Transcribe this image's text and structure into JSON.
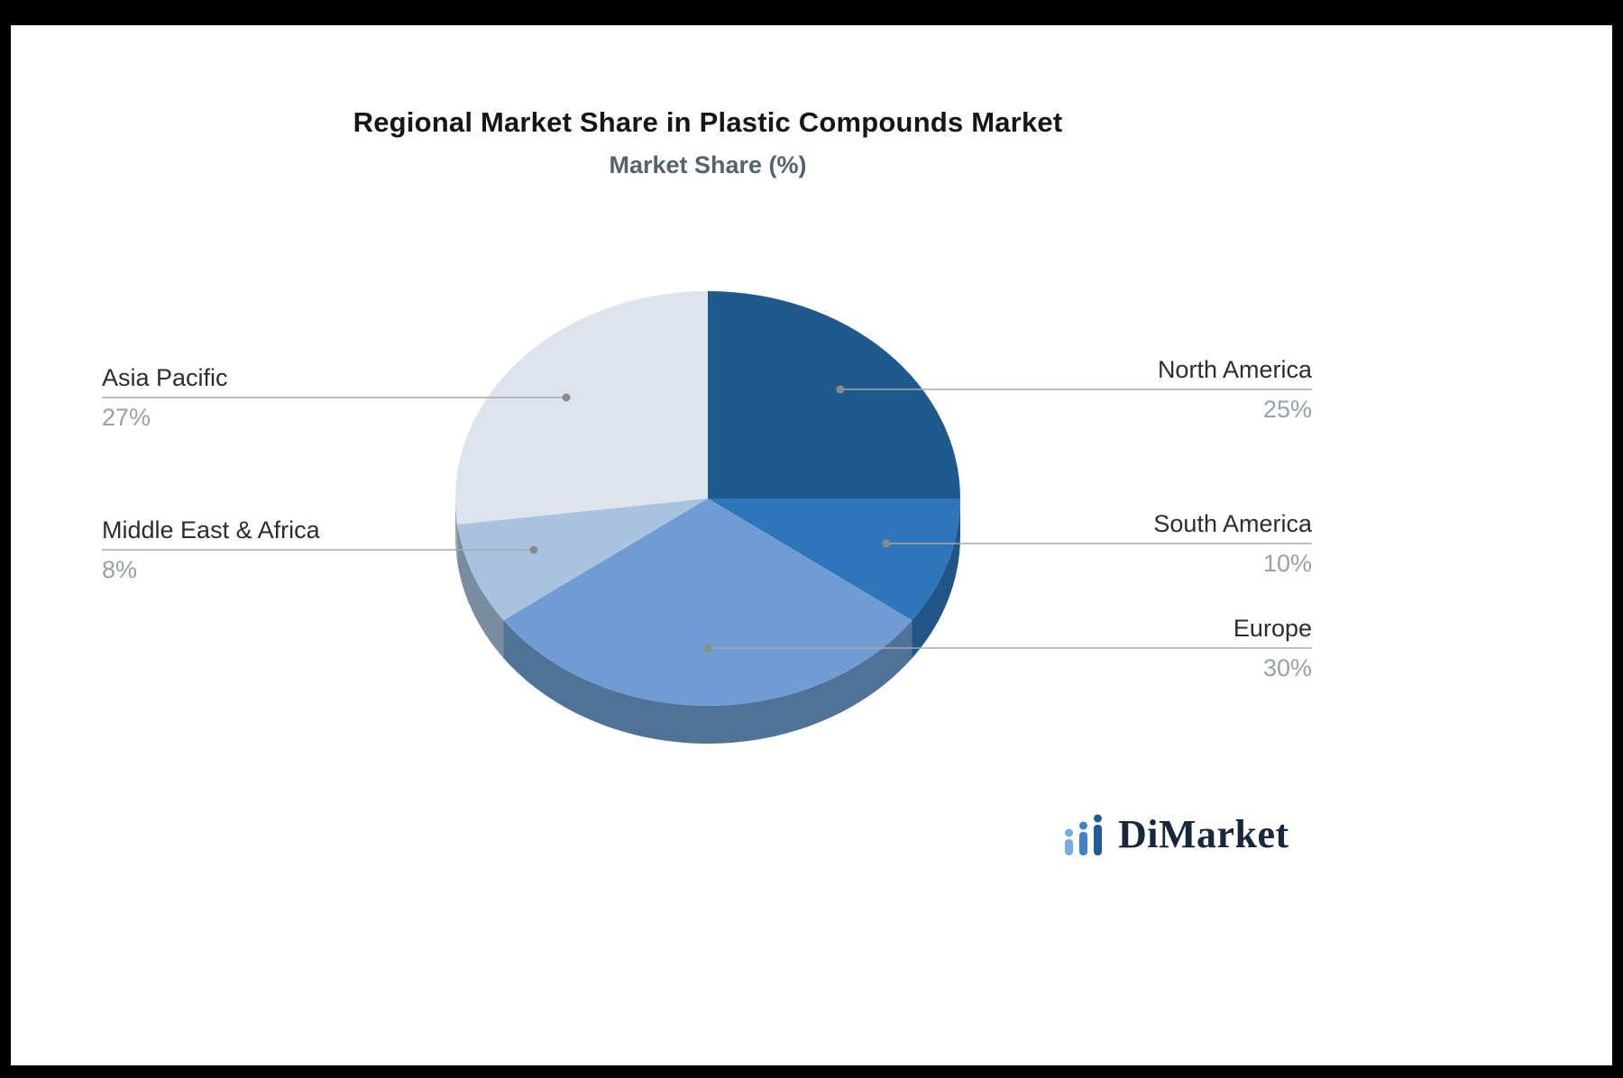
{
  "frame": {
    "background": "#ffffff",
    "border_color": "#000000"
  },
  "header": {
    "title": "Regional Market Share in Plastic Compounds Market",
    "subtitle": "Market Share (%)"
  },
  "branding": {
    "name": "DiMarket",
    "icon": "bar-chart-dots-icon",
    "icon_colors": [
      "#79ACE4",
      "#3E82CC",
      "#1F5C9E"
    ],
    "text_color": "#17283c"
  },
  "chart_data": {
    "type": "pie",
    "style": "3d",
    "title": "Regional Market Share in Plastic Compounds Market",
    "subtitle": "Market Share (%)",
    "unit": "%",
    "direction": "clockwise",
    "start_angle_deg": 0,
    "labels": [
      "North America",
      "South America",
      "Europe",
      "Middle East & Africa",
      "Asia Pacific"
    ],
    "values": [
      25,
      10,
      30,
      8,
      27
    ],
    "value_labels": [
      "25%",
      "10%",
      "30%",
      "8%",
      "27%"
    ],
    "colors": [
      "#20598C",
      "#2E76B9",
      "#6F9DD3",
      "#A9C2DE",
      "#DDE4EE"
    ],
    "label_sides": [
      "right",
      "right",
      "right",
      "left",
      "left"
    ],
    "legend": "leader-line callouts",
    "leader_line_color": "#a8a8a8",
    "leader_dot_color": "#8a8a8a",
    "background": "#ffffff"
  }
}
